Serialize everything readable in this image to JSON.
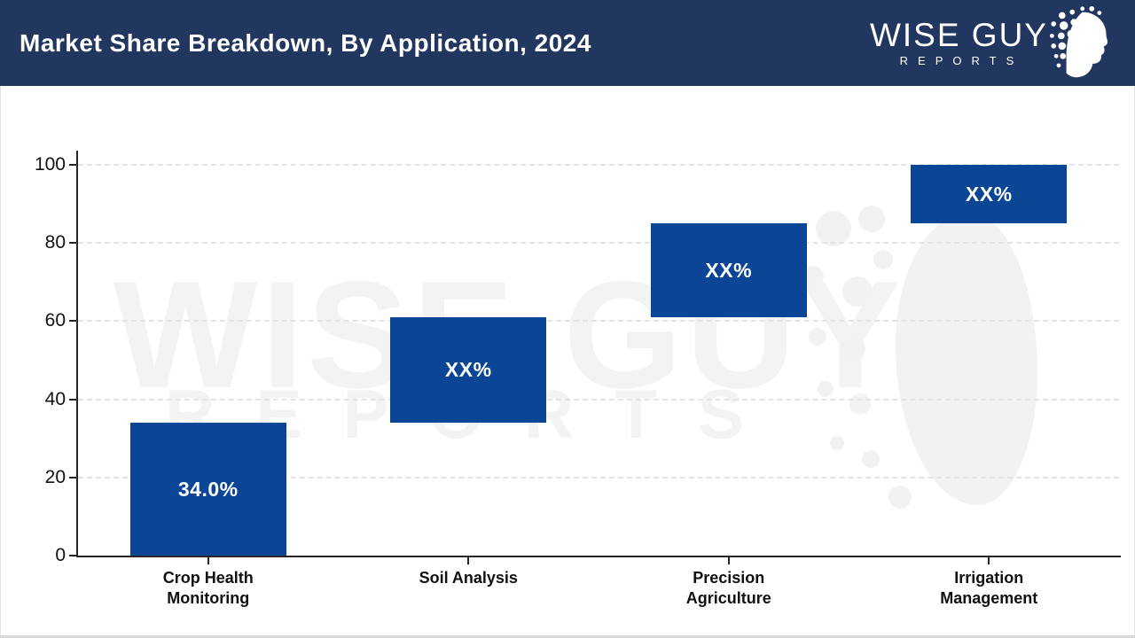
{
  "header": {
    "title": "Market Share Breakdown, By Application, 2024",
    "background_color": "#21375f",
    "logo": {
      "line1": "WISE GUY",
      "line2": "REPORTS",
      "icon": "dotted-head-profile-icon"
    }
  },
  "watermark": {
    "line1": "WISE GUY",
    "line2": "REPORTS"
  },
  "chart_data": {
    "type": "bar",
    "variant": "waterfall",
    "title": "Market Share Breakdown, By Application, 2024",
    "categories": [
      [
        "Crop Health",
        "Monitoring"
      ],
      [
        "Soil Analysis"
      ],
      [
        "Precision",
        "Agriculture"
      ],
      [
        "Irrigation",
        "Management"
      ]
    ],
    "segments": [
      {
        "start": 0,
        "end": 34,
        "value": 34,
        "label": "34.0%"
      },
      {
        "start": 34,
        "end": 61,
        "value": 27,
        "label": "XX%"
      },
      {
        "start": 61,
        "end": 85,
        "value": 24,
        "label": "XX%"
      },
      {
        "start": 85,
        "end": 100,
        "value": 15,
        "label": "XX%"
      }
    ],
    "ylim": [
      0,
      100
    ],
    "yticks": [
      0,
      20,
      40,
      60,
      80,
      100
    ],
    "grid": "horizontal-dashed",
    "legend": "none",
    "bar_color": "#0a4596",
    "bar_label_color": "#ffffff",
    "axis_color": "#262626"
  }
}
